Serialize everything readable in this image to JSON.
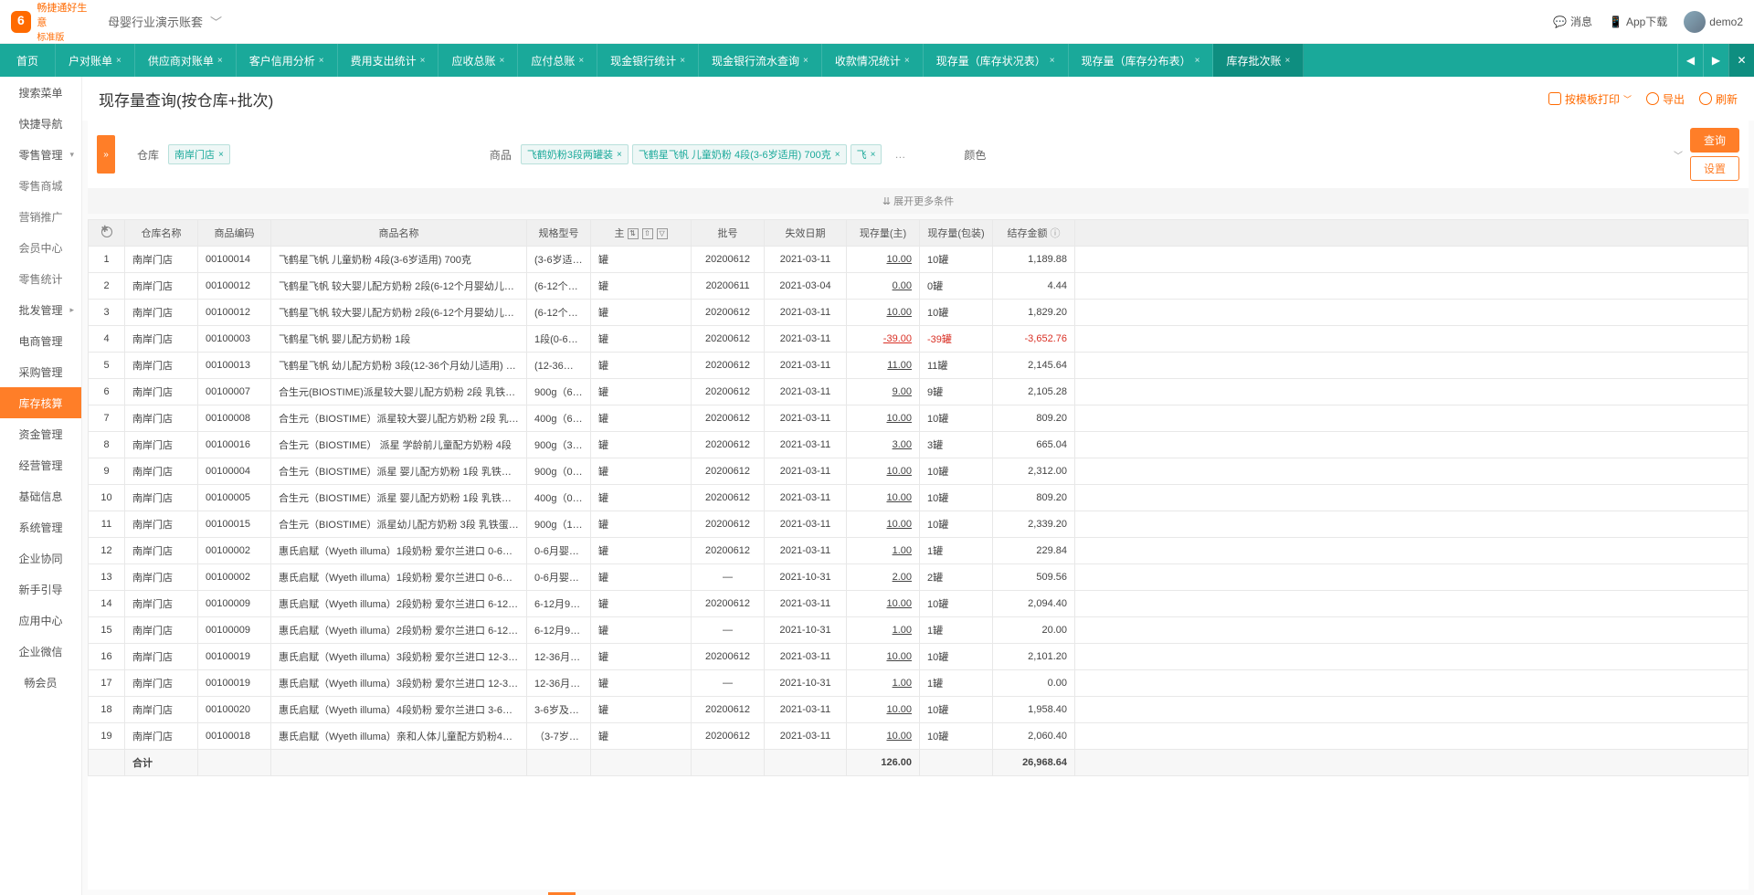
{
  "header": {
    "brand_line1": "畅捷通好生意",
    "brand_line2": "标准版",
    "account": "母婴行业演示账套",
    "msg": "消息",
    "download": "App下载",
    "user": "demo2"
  },
  "tabs": {
    "home": "首页",
    "items": [
      "户对账单",
      "供应商对账单",
      "客户信用分析",
      "费用支出统计",
      "应收总账",
      "应付总账",
      "现金银行统计",
      "现金银行流水查询",
      "收款情况统计",
      "现存量（库存状况表）",
      "现存量（库存分布表）",
      "库存批次账"
    ],
    "active_index": 11
  },
  "sidebar": {
    "items": [
      {
        "label": "搜索菜单",
        "kind": "plain"
      },
      {
        "label": "快捷导航",
        "kind": "plain"
      },
      {
        "label": "零售管理",
        "kind": "group",
        "expanded": true
      },
      {
        "label": "零售商城",
        "kind": "sub"
      },
      {
        "label": "营销推广",
        "kind": "sub"
      },
      {
        "label": "会员中心",
        "kind": "sub"
      },
      {
        "label": "零售统计",
        "kind": "sub"
      },
      {
        "label": "批发管理",
        "kind": "group",
        "expanded": false
      },
      {
        "label": "电商管理",
        "kind": "plain"
      },
      {
        "label": "采购管理",
        "kind": "plain"
      },
      {
        "label": "库存核算",
        "kind": "active"
      },
      {
        "label": "资金管理",
        "kind": "plain"
      },
      {
        "label": "经营管理",
        "kind": "plain"
      },
      {
        "label": "基础信息",
        "kind": "plain"
      },
      {
        "label": "系统管理",
        "kind": "plain"
      },
      {
        "label": "企业协同",
        "kind": "plain"
      },
      {
        "label": "新手引导",
        "kind": "plain"
      },
      {
        "label": "应用中心",
        "kind": "plain"
      },
      {
        "label": "企业微信",
        "kind": "plain"
      },
      {
        "label": "畅会员",
        "kind": "plain"
      }
    ]
  },
  "page": {
    "title": "现存量查询(按仓库+批次)",
    "print": "按模板打印",
    "export": "导出",
    "refresh": "刷新"
  },
  "filters": {
    "warehouse_label": "仓库",
    "warehouse_chip": "南岸门店",
    "product_label": "商品",
    "product_chips": [
      "飞鹤奶粉3段两罐装",
      "飞鹤星飞帆 儿童奶粉 4段(3-6岁适用) 700克",
      "飞"
    ],
    "color_label": "颜色",
    "query_btn": "查询",
    "settings_btn": "设置",
    "expand": "展开更多条件"
  },
  "table": {
    "headers": {
      "idx": "",
      "gear": "⚙",
      "warehouse": "仓库名称",
      "code": "商品编码",
      "name": "商品名称",
      "spec": "规格型号",
      "unit": "主",
      "batch": "批号",
      "expire": "失效日期",
      "qty": "现存量(主)",
      "pkg": "现存量(包装)",
      "amt": "结存金额"
    },
    "rows": [
      {
        "i": 1,
        "wh": "南岸门店",
        "code": "00100014",
        "name": "飞鹤星飞帆 儿童奶粉 4段(3-6岁适用) 700克",
        "spec": "(3-6岁适用)...",
        "unit": "罐",
        "batch": "20200612",
        "exp": "2021-03-11",
        "qty": "10.00",
        "pkg": "10罐",
        "amt": "1,189.88"
      },
      {
        "i": 2,
        "wh": "南岸门店",
        "code": "00100012",
        "name": "飞鹤星飞帆 较大婴儿配方奶粉 2段(6-12个月婴幼儿适用) ...",
        "spec": "(6-12个月...",
        "unit": "罐",
        "batch": "20200611",
        "exp": "2021-03-04",
        "qty": "0.00",
        "pkg": "0罐",
        "amt": "4.44"
      },
      {
        "i": 3,
        "wh": "南岸门店",
        "code": "00100012",
        "name": "飞鹤星飞帆 较大婴儿配方奶粉 2段(6-12个月婴幼儿适用) ...",
        "spec": "(6-12个月...",
        "unit": "罐",
        "batch": "20200612",
        "exp": "2021-03-11",
        "qty": "10.00",
        "pkg": "10罐",
        "amt": "1,829.20"
      },
      {
        "i": 4,
        "wh": "南岸门店",
        "code": "00100003",
        "name": "飞鹤星飞帆 婴儿配方奶粉 1段",
        "spec": "1段(0-6个...",
        "unit": "罐",
        "batch": "20200612",
        "exp": "2021-03-11",
        "qty": "-39.00",
        "pkg": "-39罐",
        "amt": "-3,652.76",
        "neg": true
      },
      {
        "i": 5,
        "wh": "南岸门店",
        "code": "00100013",
        "name": "飞鹤星飞帆 幼儿配方奶粉 3段(12-36个月幼儿适用) 700克",
        "spec": "(12-36个月...",
        "unit": "罐",
        "batch": "20200612",
        "exp": "2021-03-11",
        "qty": "11.00",
        "pkg": "11罐",
        "amt": "2,145.64"
      },
      {
        "i": 6,
        "wh": "南岸门店",
        "code": "00100007",
        "name": "合生元(BIOSTIME)派星较大婴儿配方奶粉 2段 乳铁蛋白的...",
        "spec": "900g（6-1...",
        "unit": "罐",
        "batch": "20200612",
        "exp": "2021-03-11",
        "qty": "9.00",
        "pkg": "9罐",
        "amt": "2,105.28"
      },
      {
        "i": 7,
        "wh": "南岸门店",
        "code": "00100008",
        "name": "合生元（BIOSTIME）派星较大婴儿配方奶粉 2段 乳铁蛋...",
        "spec": "400g（6-1...",
        "unit": "罐",
        "batch": "20200612",
        "exp": "2021-03-11",
        "qty": "10.00",
        "pkg": "10罐",
        "amt": "809.20"
      },
      {
        "i": 8,
        "wh": "南岸门店",
        "code": "00100016",
        "name": "合生元（BIOSTIME） 派星 学龄前儿童配方奶粉 4段",
        "spec": "900g（3岁...",
        "unit": "罐",
        "batch": "20200612",
        "exp": "2021-03-11",
        "qty": "3.00",
        "pkg": "3罐",
        "amt": "665.04"
      },
      {
        "i": 9,
        "wh": "南岸门店",
        "code": "00100004",
        "name": "合生元（BIOSTIME）派星 婴儿配方奶粉 1段 乳铁蛋白的...",
        "spec": "900g（0-6...",
        "unit": "罐",
        "batch": "20200612",
        "exp": "2021-03-11",
        "qty": "10.00",
        "pkg": "10罐",
        "amt": "2,312.00"
      },
      {
        "i": 10,
        "wh": "南岸门店",
        "code": "00100005",
        "name": "合生元（BIOSTIME）派星 婴儿配方奶粉 1段 乳铁蛋白的...",
        "spec": "400g（0-6...",
        "unit": "罐",
        "batch": "20200612",
        "exp": "2021-03-11",
        "qty": "10.00",
        "pkg": "10罐",
        "amt": "809.20"
      },
      {
        "i": 11,
        "wh": "南岸门店",
        "code": "00100015",
        "name": "合生元（BIOSTIME）派星幼儿配方奶粉 3段 乳铁蛋白的...",
        "spec": "900g（12-...",
        "unit": "罐",
        "batch": "20200612",
        "exp": "2021-03-11",
        "qty": "10.00",
        "pkg": "10罐",
        "amt": "2,339.20"
      },
      {
        "i": 12,
        "wh": "南岸门店",
        "code": "00100002",
        "name": "惠氏启赋（Wyeth illuma）1段奶粉 爱尔兰进口 0-6月婴...",
        "spec": "0-6月婴儿...",
        "unit": "罐",
        "batch": "20200612",
        "exp": "2021-03-11",
        "qty": "1.00",
        "pkg": "1罐",
        "amt": "229.84"
      },
      {
        "i": 13,
        "wh": "南岸门店",
        "code": "00100002",
        "name": "惠氏启赋（Wyeth illuma）1段奶粉 爱尔兰进口 0-6月婴...",
        "spec": "0-6月婴儿...",
        "unit": "罐",
        "batch": "—",
        "exp": "2021-10-31",
        "qty": "2.00",
        "pkg": "2罐",
        "amt": "509.56"
      },
      {
        "i": 14,
        "wh": "南岸门店",
        "code": "00100009",
        "name": "惠氏启赋（Wyeth illuma）2段奶粉 爱尔兰进口 6-12月较...",
        "spec": "6-12月900...",
        "unit": "罐",
        "batch": "20200612",
        "exp": "2021-03-11",
        "qty": "10.00",
        "pkg": "10罐",
        "amt": "2,094.40"
      },
      {
        "i": 15,
        "wh": "南岸门店",
        "code": "00100009",
        "name": "惠氏启赋（Wyeth illuma）2段奶粉 爱尔兰进口 6-12月较...",
        "spec": "6-12月900...",
        "unit": "罐",
        "batch": "—",
        "exp": "2021-10-31",
        "qty": "1.00",
        "pkg": "1罐",
        "amt": "20.00"
      },
      {
        "i": 16,
        "wh": "南岸门店",
        "code": "00100019",
        "name": "惠氏启赋（Wyeth illuma）3段奶粉 爱尔兰进口 12-36月...",
        "spec": "12-36月幼...",
        "unit": "罐",
        "batch": "20200612",
        "exp": "2021-03-11",
        "qty": "10.00",
        "pkg": "10罐",
        "amt": "2,101.20"
      },
      {
        "i": 17,
        "wh": "南岸门店",
        "code": "00100019",
        "name": "惠氏启赋（Wyeth illuma）3段奶粉 爱尔兰进口 12-36月...",
        "spec": "12-36月幼...",
        "unit": "罐",
        "batch": "—",
        "exp": "2021-10-31",
        "qty": "1.00",
        "pkg": "1罐",
        "amt": "0.00"
      },
      {
        "i": 18,
        "wh": "南岸门店",
        "code": "00100020",
        "name": "惠氏启赋（Wyeth illuma）4段奶粉 爱尔兰进口 3-6岁及7...",
        "spec": "3-6岁及7岁...",
        "unit": "罐",
        "batch": "20200612",
        "exp": "2021-03-11",
        "qty": "10.00",
        "pkg": "10罐",
        "amt": "1,958.40"
      },
      {
        "i": 19,
        "wh": "南岸门店",
        "code": "00100018",
        "name": "惠氏启赋（Wyeth illuma）亲和人体儿童配方奶粉4段（3...",
        "spec": "（3-7岁适...",
        "unit": "罐",
        "batch": "20200612",
        "exp": "2021-03-11",
        "qty": "10.00",
        "pkg": "10罐",
        "amt": "2,060.40"
      }
    ],
    "total": {
      "label": "合计",
      "qty": "126.00",
      "amt": "26,968.64"
    }
  }
}
